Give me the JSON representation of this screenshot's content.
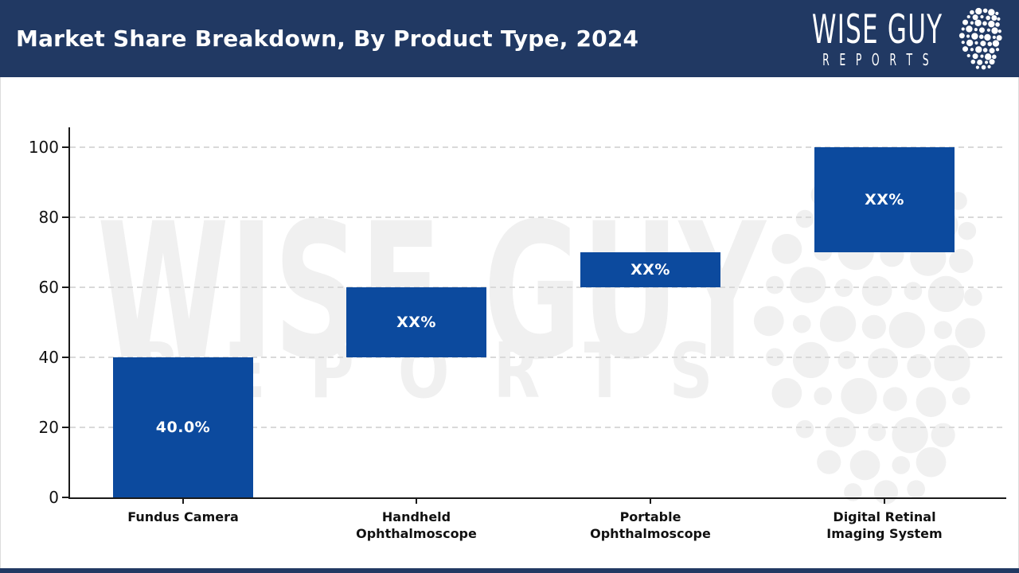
{
  "header": {
    "title": "Market Share Breakdown, By Product Type, 2024",
    "logo": {
      "line1": "WISE GUY",
      "line2": "R E P O R T S"
    }
  },
  "watermark": {
    "line1": "WISE GUY",
    "line2": "R E P O R T S"
  },
  "colors": {
    "header_navy": "#213963",
    "bar_blue": "#0c4a9e",
    "grid": "#d9d9d9",
    "axis": "#1a1a1a",
    "watermark_gray": "#f0f0f0",
    "label_dark": "#111111",
    "bar_label_white": "#ffffff"
  },
  "chart_data": {
    "type": "bar",
    "subtype": "waterfall",
    "title": "Market Share Breakdown, By Product Type, 2024",
    "categories": [
      "Fundus Camera",
      "Handheld\nOphthalmoscope",
      "Portable\nOphthalmoscope",
      "Digital Retinal\nImaging System"
    ],
    "segments": [
      {
        "category": "Fundus Camera",
        "start": 0,
        "end": 40,
        "label": "40.0%"
      },
      {
        "category": "Handheld Ophthalmoscope",
        "start": 40,
        "end": 60,
        "label": "XX%"
      },
      {
        "category": "Portable Ophthalmoscope",
        "start": 60,
        "end": 70,
        "label": "XX%"
      },
      {
        "category": "Digital Retinal Imaging System",
        "start": 70,
        "end": 100,
        "label": "XX%"
      }
    ],
    "xlabel": "",
    "ylabel": "",
    "ylim": [
      0,
      100
    ],
    "yticks": [
      0,
      20,
      40,
      60,
      80,
      100
    ],
    "grid": "horizontal-dashed",
    "legend": "none",
    "bar_color": "#0c4a9e"
  }
}
